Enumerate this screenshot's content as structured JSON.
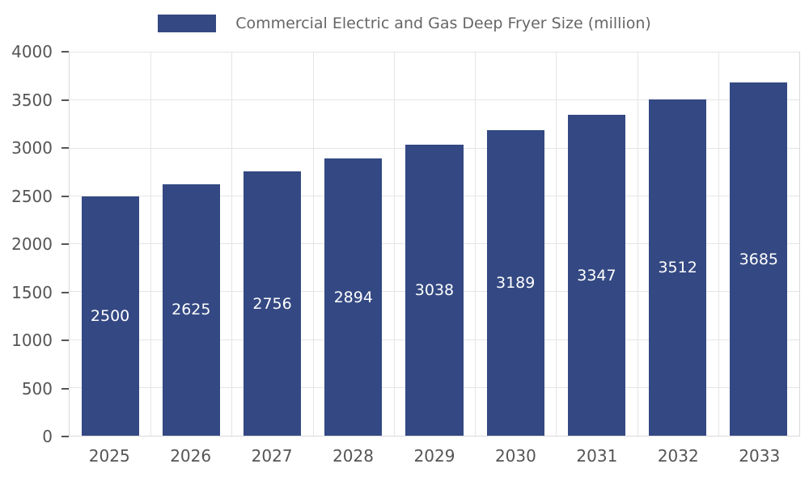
{
  "chart_data": {
    "type": "bar",
    "title": "Commercial Electric and Gas Deep Fryer Size (million)",
    "categories": [
      "2025",
      "2026",
      "2027",
      "2028",
      "2029",
      "2030",
      "2031",
      "2032",
      "2033"
    ],
    "values": [
      2500,
      2625,
      2756,
      2894,
      3038,
      3189,
      3347,
      3512,
      3685
    ],
    "xlabel": "",
    "ylabel": "",
    "ylim": [
      0,
      4000
    ],
    "yticks": [
      0,
      500,
      1000,
      1500,
      2000,
      2500,
      3000,
      3500,
      4000
    ],
    "grid": true,
    "legend_position": "top",
    "value_labels": "inside-middle",
    "colors": {
      "bar": "#344983",
      "bar_label": "#ffffff",
      "axis_text": "#555555",
      "title_text": "#666666",
      "gridline": "#e5e5e5",
      "plot_border": "#d9d9d9"
    }
  },
  "legend": {
    "label": "Commercial Electric and Gas Deep Fryer Size (million)"
  }
}
